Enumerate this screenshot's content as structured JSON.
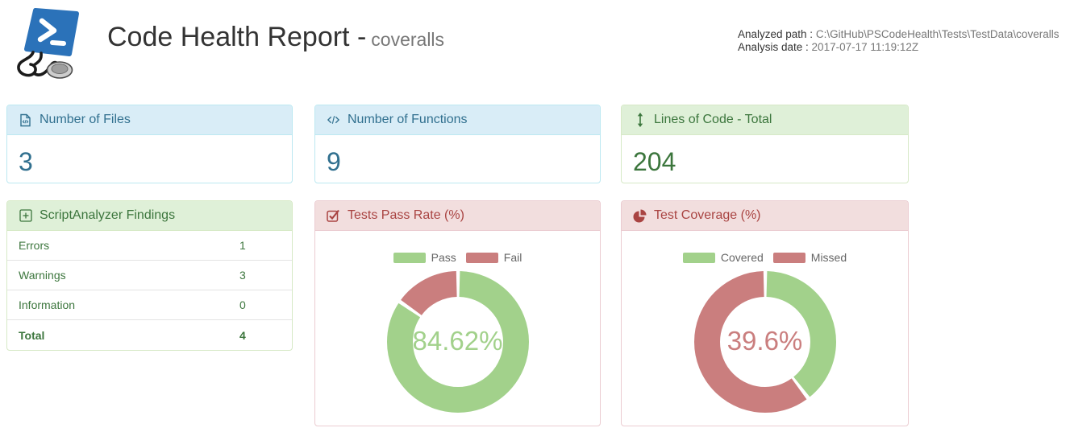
{
  "header": {
    "title": "Code Health Report -",
    "subtitle": "coveralls",
    "analyzed_path_label": "Analyzed path : ",
    "analyzed_path_value": "C:\\GitHub\\PSCodeHealth\\Tests\\TestData\\coveralls",
    "analysis_date_label": "Analysis date : ",
    "analysis_date_value": "2017-07-17 11:19:12Z",
    "logo_icon": "powershell-stethoscope-logo"
  },
  "summary_cards": [
    {
      "title": "Number of Files",
      "value": "3",
      "icon": "file-code-icon",
      "theme": "info"
    },
    {
      "title": "Number of Functions",
      "value": "9",
      "icon": "code-icon",
      "theme": "info"
    },
    {
      "title": "Lines of Code - Total",
      "value": "204",
      "icon": "arrows-vertical-icon",
      "theme": "success"
    }
  ],
  "findings_panel": {
    "title": "ScriptAnalyzer Findings",
    "icon": "plus-square-icon",
    "rows": [
      {
        "label": "Errors",
        "value": "1"
      },
      {
        "label": "Warnings",
        "value": "3"
      },
      {
        "label": "Information",
        "value": "0"
      }
    ],
    "total_row": {
      "label": "Total",
      "value": "4"
    }
  },
  "chart_data": [
    {
      "type": "pie",
      "variant": "donut",
      "panel_title": "Tests Pass Rate (%)",
      "icon": "check-square-icon",
      "labels": [
        "Pass",
        "Fail"
      ],
      "values": [
        84.62,
        15.38
      ],
      "colors": [
        "#a2d18b",
        "#ca7e7e"
      ],
      "center_label": "84.62%",
      "center_color": "#a2d18b",
      "legend_position": "top",
      "start_angle_deg": 0,
      "direction": "clockwise"
    },
    {
      "type": "pie",
      "variant": "donut",
      "panel_title": "Test Coverage (%)",
      "icon": "pie-chart-icon",
      "labels": [
        "Covered",
        "Missed"
      ],
      "values": [
        39.6,
        60.4
      ],
      "colors": [
        "#a2d18b",
        "#ca7e7e"
      ],
      "center_label": "39.6%",
      "center_color": "#ca7e7e",
      "legend_position": "top",
      "start_angle_deg": 0,
      "direction": "clockwise"
    }
  ],
  "theme_colors": {
    "info_bg": "#d9edf7",
    "info_border": "#bce8f1",
    "info_text": "#31708f",
    "success_bg": "#dff0d8",
    "success_border": "#d6e9c6",
    "success_text": "#3c763d",
    "danger_bg": "#f2dede",
    "danger_border": "#ebccd1",
    "danger_text": "#a94442",
    "legend_text": "#666666",
    "title_text": "#333333",
    "muted_text": "#777777"
  }
}
